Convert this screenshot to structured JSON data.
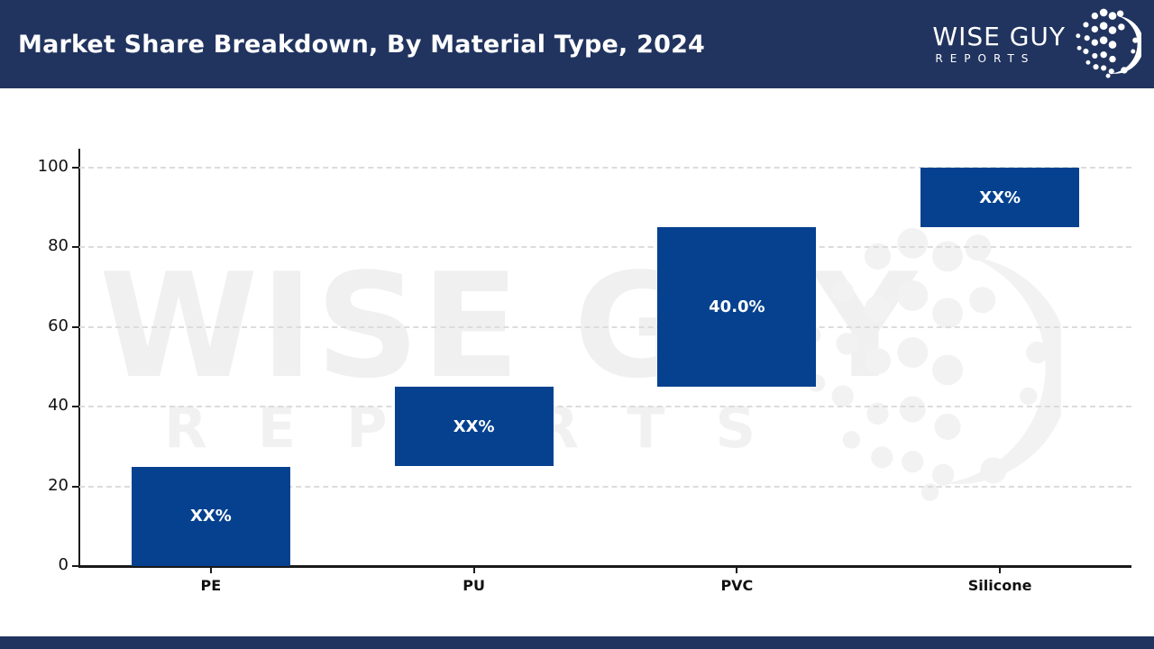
{
  "header": {
    "title": "Market Share Breakdown, By Material Type, 2024",
    "logo": {
      "name": "WISE GUY",
      "subtitle": "REPORTS"
    }
  },
  "watermark": {
    "name": "WISE GUY",
    "subtitle": "REPORTS"
  },
  "colors": {
    "header_bg": "#21345f",
    "footer_bg": "#21345f",
    "bar_fill": "#05418f",
    "bar_label_text": "#ffffff",
    "axis": "#1a1a1a",
    "gridline": "#dcdcdc",
    "tick_label": "#111111",
    "watermark": "#f0f0f0"
  },
  "chart_data": {
    "type": "bar",
    "subtype": "floating-waterfall",
    "title": "Market Share Breakdown, By Material Type, 2024",
    "categories": [
      "PE",
      "PU",
      "PVC",
      "Silicone"
    ],
    "series": [
      {
        "name": "Market share",
        "segments": [
          {
            "category": "PE",
            "start": 0,
            "end": 25,
            "label": "XX%"
          },
          {
            "category": "PU",
            "start": 25,
            "end": 45,
            "label": "XX%"
          },
          {
            "category": "PVC",
            "start": 45,
            "end": 85,
            "label": "40.0%"
          },
          {
            "category": "Silicone",
            "start": 85,
            "end": 100,
            "label": "XX%"
          }
        ]
      }
    ],
    "xlabel": "",
    "ylabel": "",
    "ylim": [
      0,
      100
    ],
    "yticks": [
      0,
      20,
      40,
      60,
      80,
      100
    ],
    "grid": "horizontal-dashed",
    "legend": "none"
  }
}
